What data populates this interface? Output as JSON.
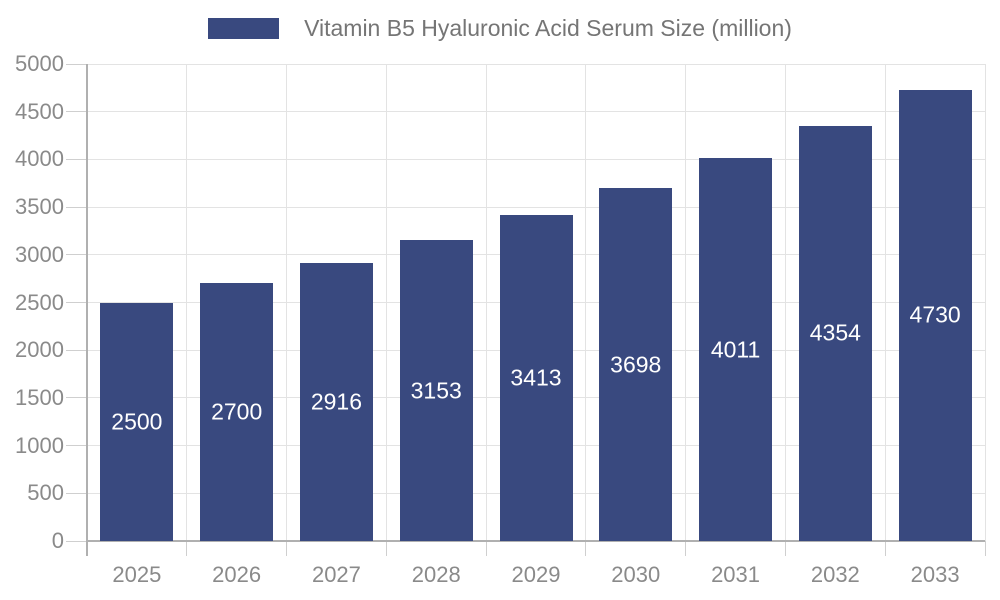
{
  "chart_data": {
    "type": "bar",
    "title": "Vitamin B5 Hyaluronic Acid Serum Size (million)",
    "series_name": "Vitamin B5 Hyaluronic Acid Serum Size (million)",
    "categories": [
      "2025",
      "2026",
      "2027",
      "2028",
      "2029",
      "2030",
      "2031",
      "2032",
      "2033"
    ],
    "values": [
      2500,
      2700,
      2916,
      3153,
      3413,
      3698,
      4011,
      4354,
      4730
    ],
    "xlabel": "",
    "ylabel": "",
    "ylim": [
      0,
      5000
    ],
    "ytick_step": 500,
    "ytick_labels": [
      "0",
      "500",
      "1000",
      "1500",
      "2000",
      "2500",
      "3000",
      "3500",
      "4000",
      "4500",
      "5000"
    ],
    "grid": true,
    "legend_position": "top",
    "value_labels_inside_bars": true,
    "colors": {
      "bar": "#39497f",
      "value_label": "#ffffff",
      "axis_text": "#8a8a8a",
      "legend_text": "#757575",
      "gridline": "#e3e3e3",
      "axis_line": "#b0b0b0",
      "tick_mark": "#cfcfcf",
      "background": "#ffffff"
    }
  }
}
